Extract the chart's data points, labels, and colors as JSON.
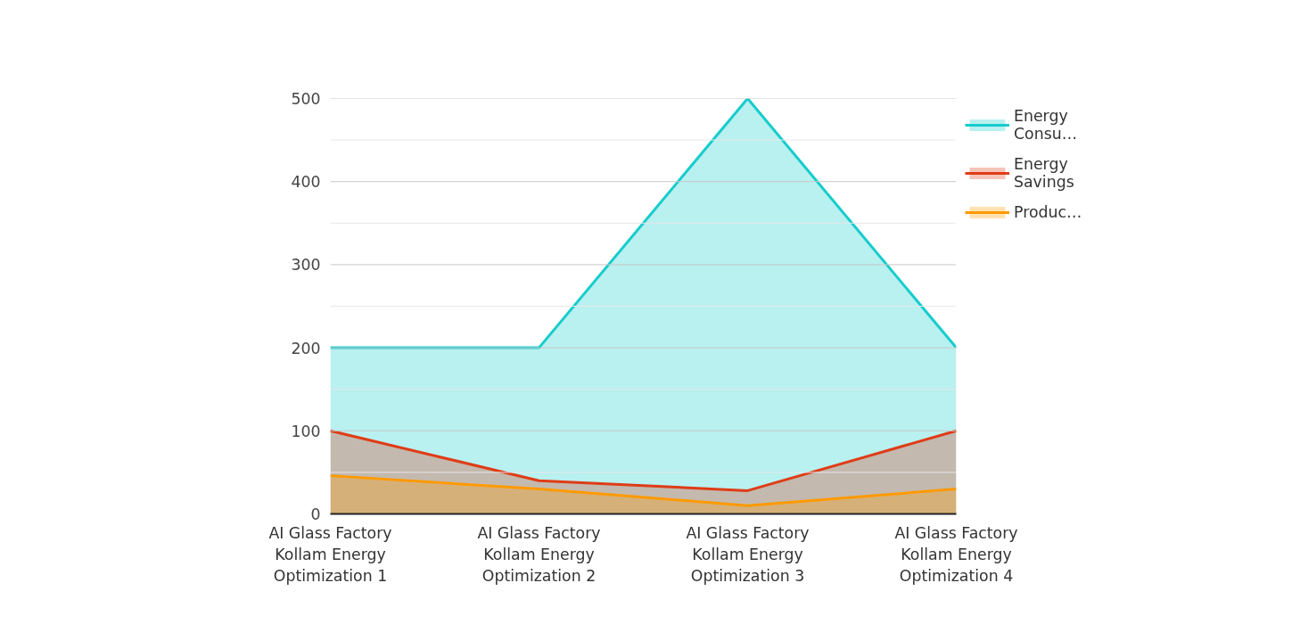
{
  "chart_data": {
    "type": "area",
    "categories": [
      "AI Glass Factory Kollam Energy Optimization 1",
      "AI Glass Factory Kollam Energy Optimization 2",
      "AI Glass Factory Kollam Energy Optimization 3",
      "AI Glass Factory Kollam Energy Optimization 4"
    ],
    "series": [
      {
        "name": "Energy Consu…",
        "color": "#16cccc",
        "values": [
          200,
          200,
          500,
          200
        ]
      },
      {
        "name": "Energy Savings",
        "color": "#df3c16",
        "values": [
          100,
          40,
          28,
          100
        ]
      },
      {
        "name": "Produc…",
        "color": "#ff9a00",
        "values": [
          46,
          30,
          10,
          30
        ]
      }
    ],
    "ylim": [
      0,
      500
    ],
    "yticks": [
      0,
      {
        "value": 50,
        "label": null
      },
      100,
      {
        "value": 150,
        "label": null
      },
      200,
      {
        "value": 250,
        "label": null
      },
      300,
      {
        "value": 350,
        "label": null
      },
      400,
      {
        "value": 450,
        "label": null
      },
      500
    ],
    "grid": "y",
    "legend": "right"
  }
}
